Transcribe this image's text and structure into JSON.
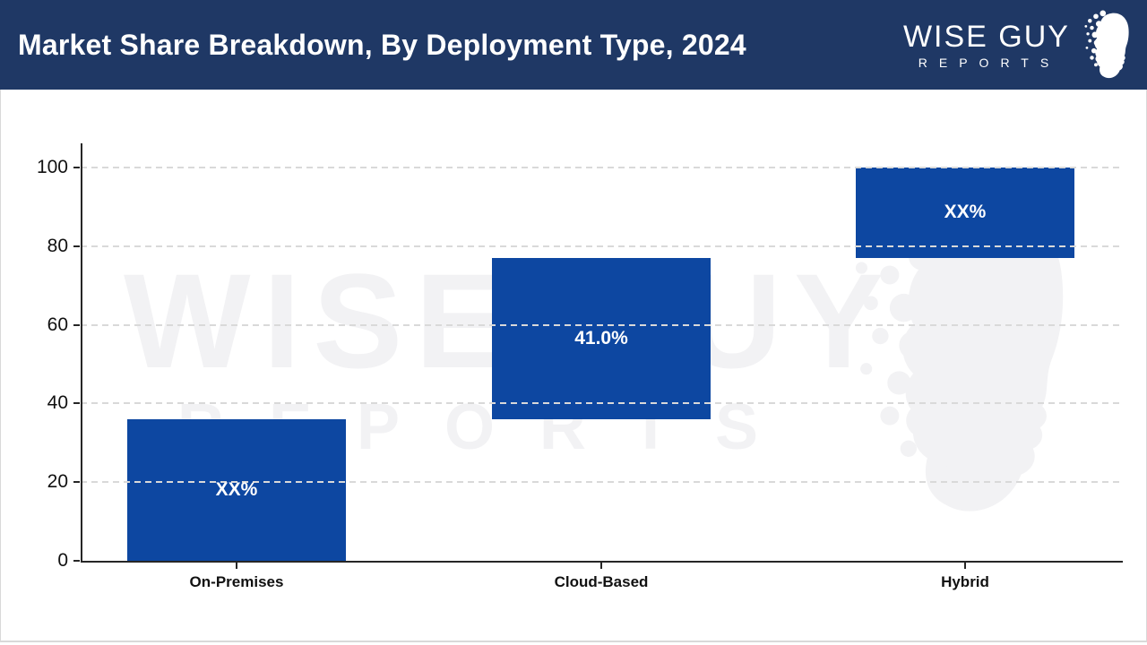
{
  "header": {
    "title": "Market Share Breakdown, By Deployment Type, 2024",
    "logo": {
      "line1": "WISE GUY",
      "line2": "REPORTS"
    }
  },
  "watermark": {
    "line1": "WISE GUY",
    "line2": "REPORTS"
  },
  "chart_data": {
    "type": "bar",
    "subtype": "floating-waterfall",
    "title": "Market Share Breakdown, By Deployment Type, 2024",
    "categories": [
      "On-Premises",
      "Cloud-Based",
      "Hybrid"
    ],
    "segments": [
      {
        "category": "On-Premises",
        "start": 0,
        "end": 36,
        "label": "XX%"
      },
      {
        "category": "Cloud-Based",
        "start": 36,
        "end": 77,
        "label": "41.0%"
      },
      {
        "category": "Hybrid",
        "start": 77,
        "end": 100,
        "label": "XX%"
      }
    ],
    "xlabel": "",
    "ylabel": "",
    "ylim": [
      0,
      100
    ],
    "yticks": [
      0,
      20,
      40,
      60,
      80,
      100
    ],
    "grid": "horizontal-dashed",
    "gridlines_above_bars": true,
    "legend": "none"
  },
  "colors": {
    "header_bg": "#1f3865",
    "bar": "#0d47a1",
    "grid": "#d9d9d9",
    "axis": "#262626",
    "tick_text": "#111111",
    "bar_label_text": "#ffffff",
    "watermark": "#f2f2f4"
  }
}
